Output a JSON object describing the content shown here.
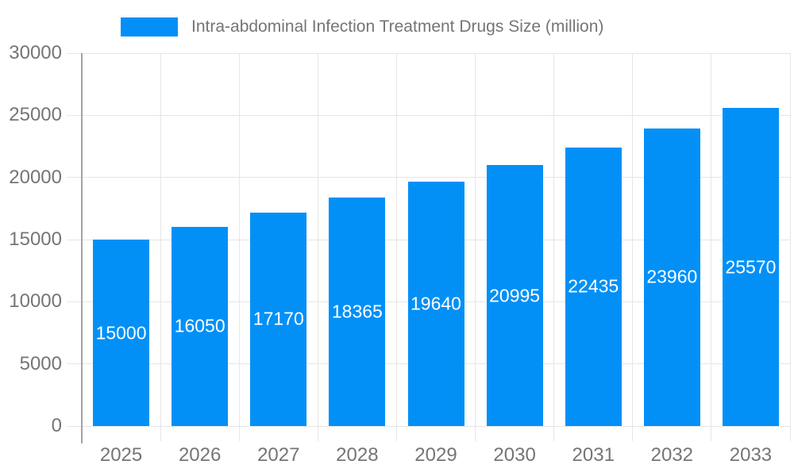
{
  "legend": {
    "label": "Intra-abdominal Infection Treatment Drugs Size (million)"
  },
  "colors": {
    "bar": "#0290F7",
    "bar_label_text": "#FFFFFF",
    "axis_line": "#A3A3A3",
    "gridline": "#E6E6E6",
    "tick_label": "#757575",
    "legend_text": "#757575",
    "background": "#FFFFFF"
  },
  "chart_data": {
    "type": "bar",
    "title": "Intra-abdominal Infection Treatment Drugs Size (million)",
    "categories": [
      "2025",
      "2026",
      "2027",
      "2028",
      "2029",
      "2030",
      "2031",
      "2032",
      "2033"
    ],
    "series": [
      {
        "name": "Intra-abdominal Infection Treatment Drugs Size (million)",
        "values": [
          15000,
          16050,
          17170,
          18365,
          19640,
          20995,
          22435,
          23960,
          25570
        ]
      }
    ],
    "bar_value_labels": [
      "15000",
      "16050",
      "17170",
      "18365",
      "19640",
      "20995",
      "22435",
      "23960",
      "25570"
    ],
    "xlabel": "",
    "ylabel": "",
    "ylim": [
      0,
      30000
    ],
    "yticks": [
      0,
      5000,
      10000,
      15000,
      20000,
      25000,
      30000
    ],
    "ytick_labels": [
      "0",
      "5000",
      "10000",
      "15000",
      "20000",
      "25000",
      "30000"
    ],
    "grid": true,
    "legend_position": "top"
  }
}
